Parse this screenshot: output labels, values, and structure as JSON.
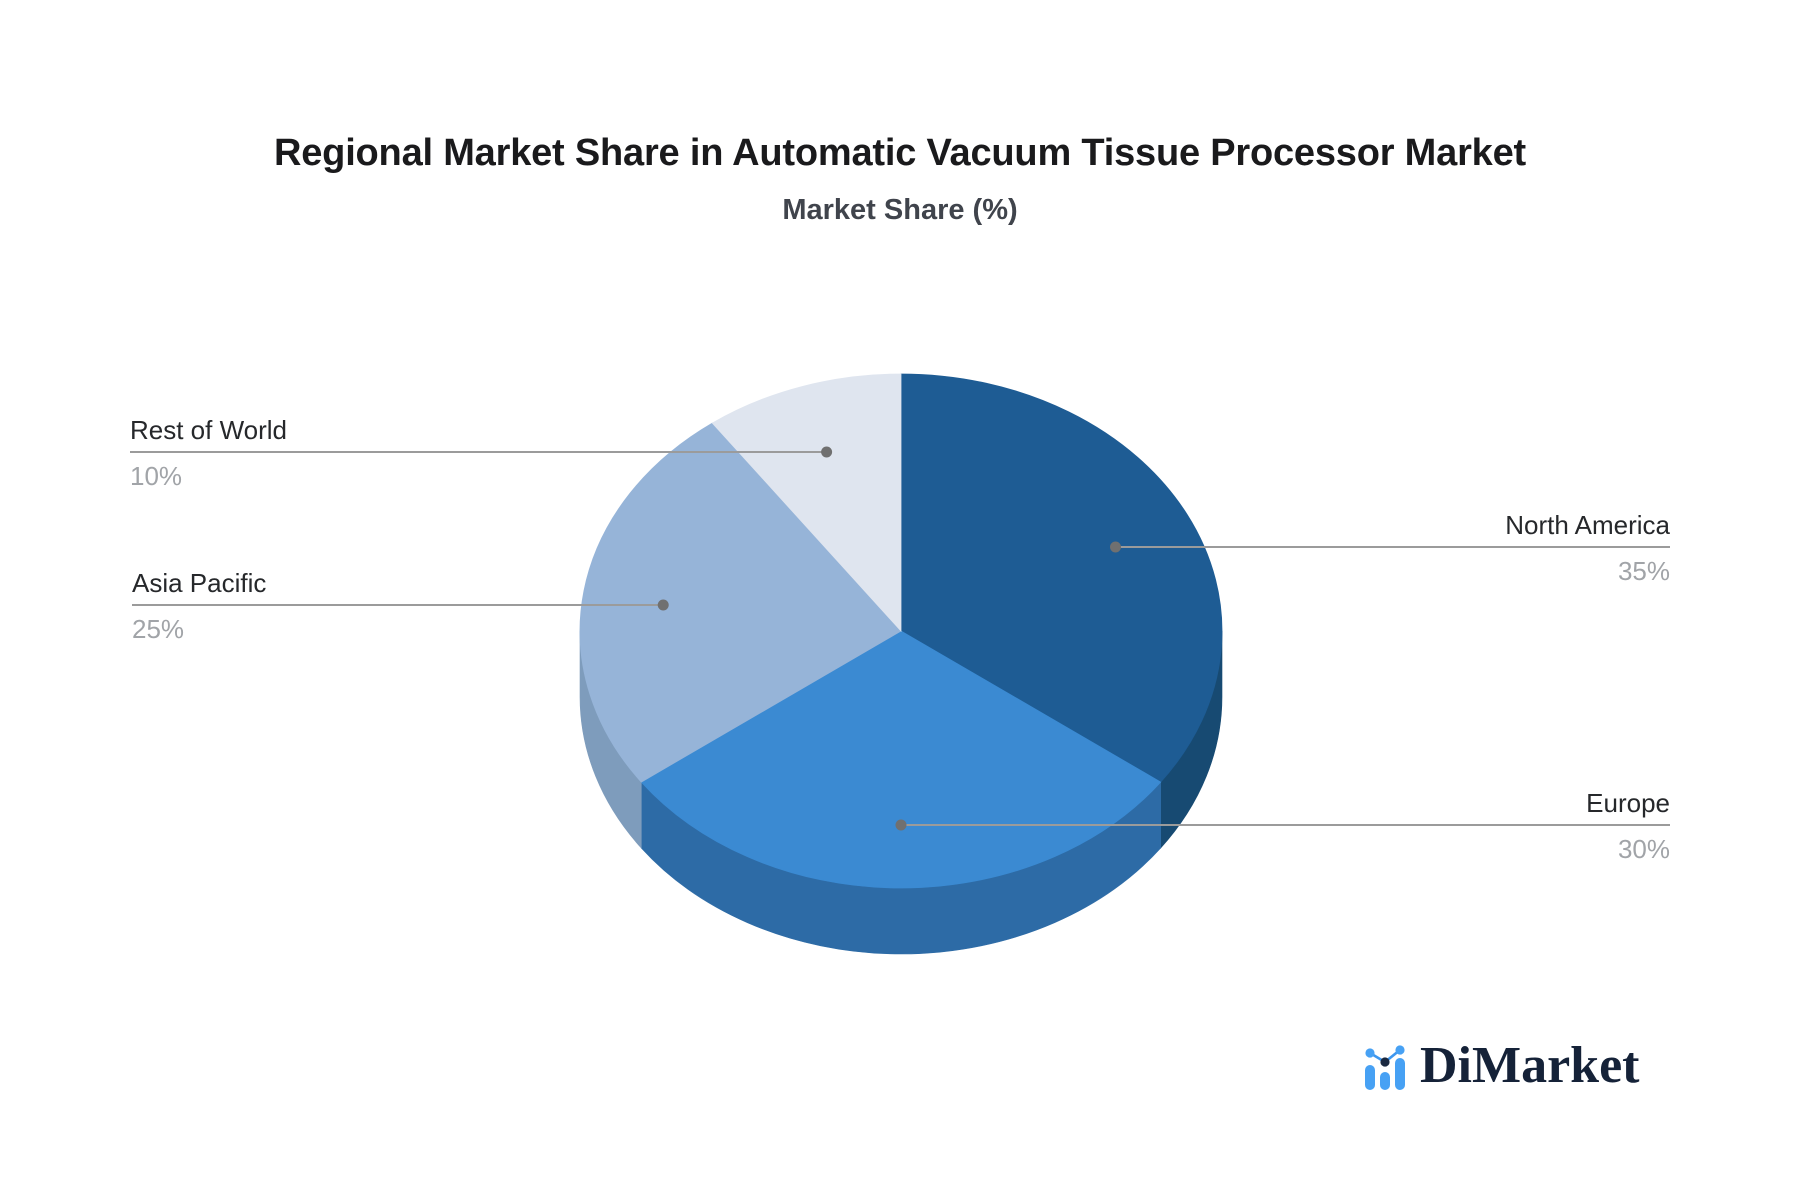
{
  "page": {
    "background": "#ffffff"
  },
  "logo": {
    "text": "DiMarket",
    "icon": "bar-chart-line-logo",
    "colors": {
      "bars": "#47a1f4",
      "accent_dot": "#1b2940",
      "text": "#152238"
    }
  },
  "leader_style": {
    "line_color": "#9b9b9b",
    "dot_color": "#707070",
    "label_color": "#26282b",
    "pct_color": "#a1a4a8"
  },
  "chart_data": {
    "type": "pie",
    "title": "Regional Market Share in Automatic Vacuum Tissue Processor Market",
    "subtitle": "Market Share (%)",
    "unit": "%",
    "style": "3d-extruded",
    "start_angle": "12-oclock",
    "direction": "clockwise",
    "legend_position": "callout-labels",
    "slices": [
      {
        "label": "North America",
        "value": 35,
        "display": "35%",
        "color_top": "#1e5c94",
        "color_side": "#174a72",
        "label_side": "right"
      },
      {
        "label": "Europe",
        "value": 30,
        "display": "30%",
        "color_top": "#3b8ad2",
        "color_side": "#2d6ba6",
        "label_side": "right"
      },
      {
        "label": "Asia Pacific",
        "value": 25,
        "display": "25%",
        "color_top": "#96b4d8",
        "color_side": "#7e9cbc",
        "label_side": "left"
      },
      {
        "label": "Rest of World",
        "value": 10,
        "display": "10%",
        "color_top": "#dfe5ef",
        "color_side": "#b9c6d8",
        "label_side": "left"
      }
    ]
  }
}
